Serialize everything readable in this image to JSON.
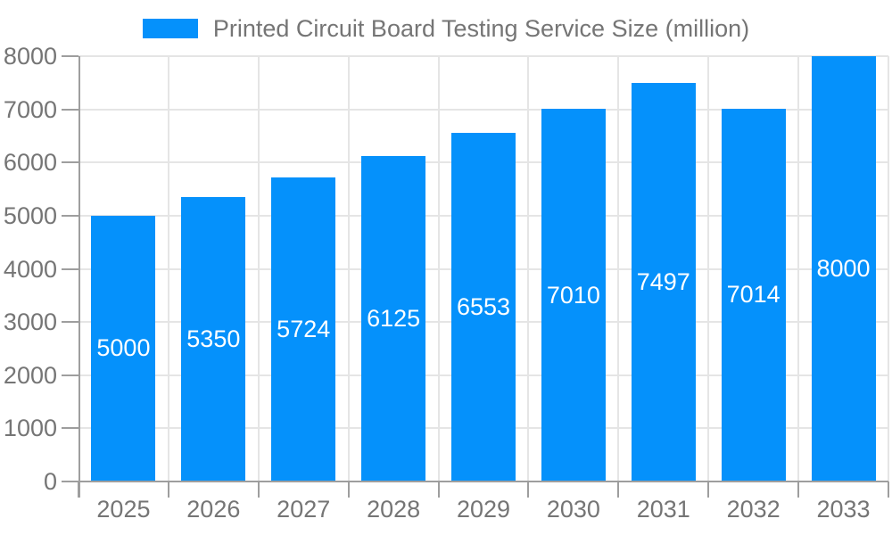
{
  "chart_data": {
    "type": "bar",
    "title": "Printed Circuit Board Testing Service Size (million)",
    "categories": [
      "2025",
      "2026",
      "2027",
      "2028",
      "2029",
      "2030",
      "2031",
      "2032",
      "2033"
    ],
    "series": [
      {
        "name": "Printed Circuit Board Testing Service Size (million)",
        "values": [
          5000,
          5350,
          5724,
          6125,
          6553,
          7010,
          7497,
          7014,
          8000
        ]
      }
    ],
    "xlabel": "",
    "ylabel": "",
    "ylim": [
      0,
      8000
    ],
    "yticks": [
      0,
      1000,
      2000,
      3000,
      4000,
      5000,
      6000,
      7000,
      8000
    ],
    "grid": true,
    "legend_position": "top",
    "bar_labels_inside": true
  },
  "legend": {
    "label": "Printed Circuit Board Testing Service Size (million)"
  },
  "colors": {
    "bar": "#0591fb",
    "axis": "#9e9e9e",
    "grid": "#e5e5e5",
    "text": "#757575",
    "value_label": "#ffffff",
    "background": "#ffffff"
  }
}
